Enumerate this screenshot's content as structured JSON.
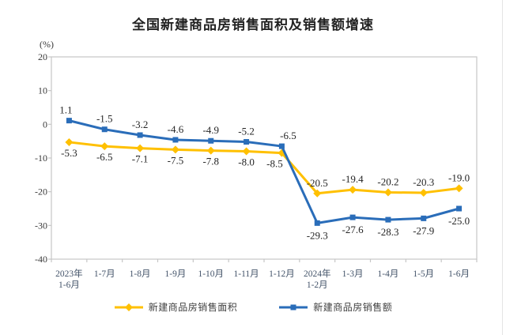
{
  "chart_data": {
    "type": "line",
    "title": "全国新建商品房销售面积及销售额增速",
    "unit_label": "(%)",
    "categories": [
      "2023年|1-6月",
      "1-7月",
      "1-8月",
      "1-9月",
      "1-10月",
      "1-11月",
      "1-12月",
      "2024年|1-2月",
      "1-3月",
      "1-4月",
      "1-5月",
      "1-6月"
    ],
    "series": [
      {
        "id": "sales-area",
        "name": "新建商品房销售面积",
        "color": "#FFC000",
        "marker": "diamond",
        "values": [
          -5.3,
          -6.5,
          -7.1,
          -7.5,
          -7.8,
          -8.0,
          -8.5,
          -20.5,
          -19.4,
          -20.2,
          -20.3,
          -19.0
        ]
      },
      {
        "id": "sales-amount",
        "name": "新建商品房销售额",
        "color": "#2A6DB9",
        "marker": "square",
        "values": [
          1.1,
          -1.5,
          -3.2,
          -4.6,
          -4.9,
          -5.2,
          -6.5,
          -29.3,
          -27.6,
          -28.3,
          -27.9,
          -25.0
        ]
      }
    ],
    "y_axis": {
      "min": -40,
      "max": 20,
      "step": 10,
      "ticks": [
        20,
        10,
        0,
        -10,
        -20,
        -30,
        -40
      ]
    },
    "x_axis_label_color": "#44546A",
    "data_label_color": "#262626",
    "axis_border_color": "#c6c6c6",
    "grid": false,
    "legend_position": "bottom",
    "data_labels": true
  }
}
